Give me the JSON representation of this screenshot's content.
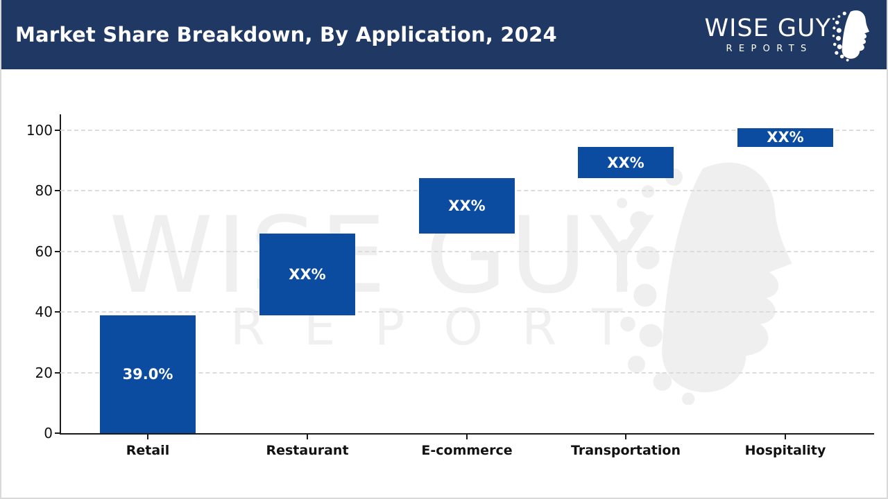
{
  "header": {
    "title": "Market Share Breakdown, By Application, 2024",
    "bg_color": "#1f3864",
    "logo": {
      "line1": "WISE GUY",
      "line2": "REPORTS"
    }
  },
  "watermark": {
    "line1": "WISE GUY",
    "line2": "REPORTS"
  },
  "chart_data": {
    "type": "bar",
    "subtype": "waterfall",
    "title": "Market Share Breakdown, By Application, 2024",
    "categories": [
      "Retail",
      "Restaurant",
      "E-commerce",
      "Transportation",
      "Hospitality"
    ],
    "segments": [
      {
        "category": "Retail",
        "start": 0,
        "end": 39,
        "label": "39.0%"
      },
      {
        "category": "Restaurant",
        "start": 39,
        "end": 65.8,
        "label": "XX%"
      },
      {
        "category": "E-commerce",
        "start": 65.8,
        "end": 84.1,
        "label": "XX%"
      },
      {
        "category": "Transportation",
        "start": 84.1,
        "end": 94.6,
        "label": "XX%"
      },
      {
        "category": "Hospitality",
        "start": 94.6,
        "end": 100.7,
        "label": "XX%"
      }
    ],
    "yticks": [
      0,
      20,
      40,
      60,
      80,
      100
    ],
    "ylim": [
      0,
      105
    ],
    "xlabel": "",
    "ylabel": "",
    "bar_color": "#0b4ba0",
    "grid": "horizontal-dashed",
    "legend": null
  }
}
